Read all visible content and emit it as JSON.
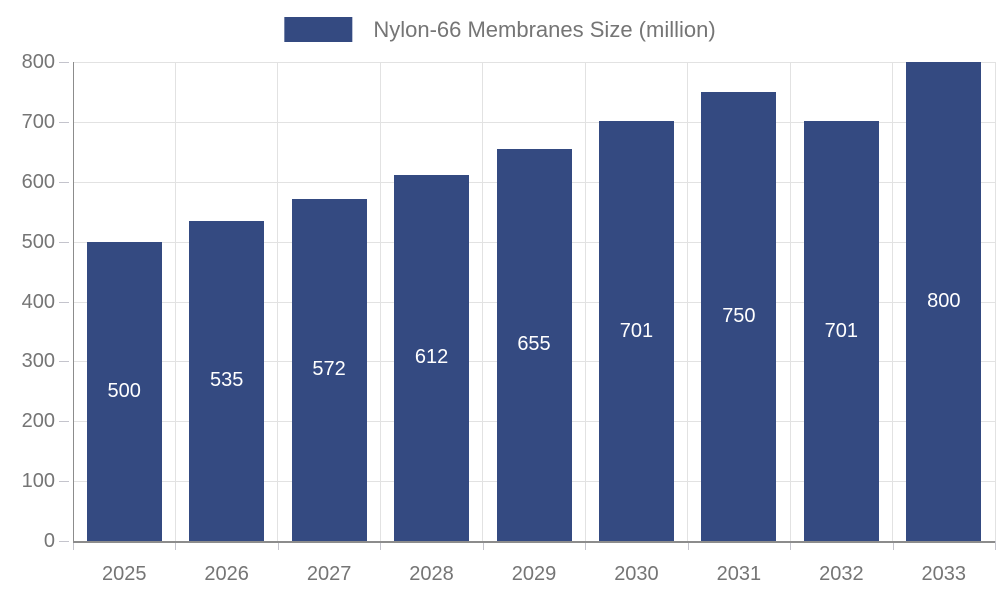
{
  "legend": {
    "label": "Nylon-66 Membranes Size (million)"
  },
  "chart_data": {
    "type": "bar",
    "title": "",
    "categories": [
      "2025",
      "2026",
      "2027",
      "2028",
      "2029",
      "2030",
      "2031",
      "2032",
      "2033"
    ],
    "series": [
      {
        "name": "Nylon-66 Membranes Size (million)",
        "values": [
          500,
          535,
          572,
          612,
          655,
          701,
          750,
          701,
          800
        ]
      }
    ],
    "value_labels": [
      "500",
      "535",
      "572",
      "612",
      "655",
      "701",
      "750",
      "701",
      "800"
    ],
    "xlabel": "",
    "ylabel": "",
    "ylim": [
      0,
      800
    ],
    "ytick_step": 100,
    "ytick_labels": [
      "0",
      "100",
      "200",
      "300",
      "400",
      "500",
      "600",
      "700",
      "800"
    ],
    "grid": true,
    "legend_position": "top-center",
    "colors": {
      "bar": "#344a81",
      "value_label": "#ffffff",
      "axis_text": "#757575",
      "legend_text": "#757575",
      "gridline": "#e2e2e2",
      "axis_line": "#8c8c8c",
      "tick_mark": "#c4c4cc"
    }
  }
}
